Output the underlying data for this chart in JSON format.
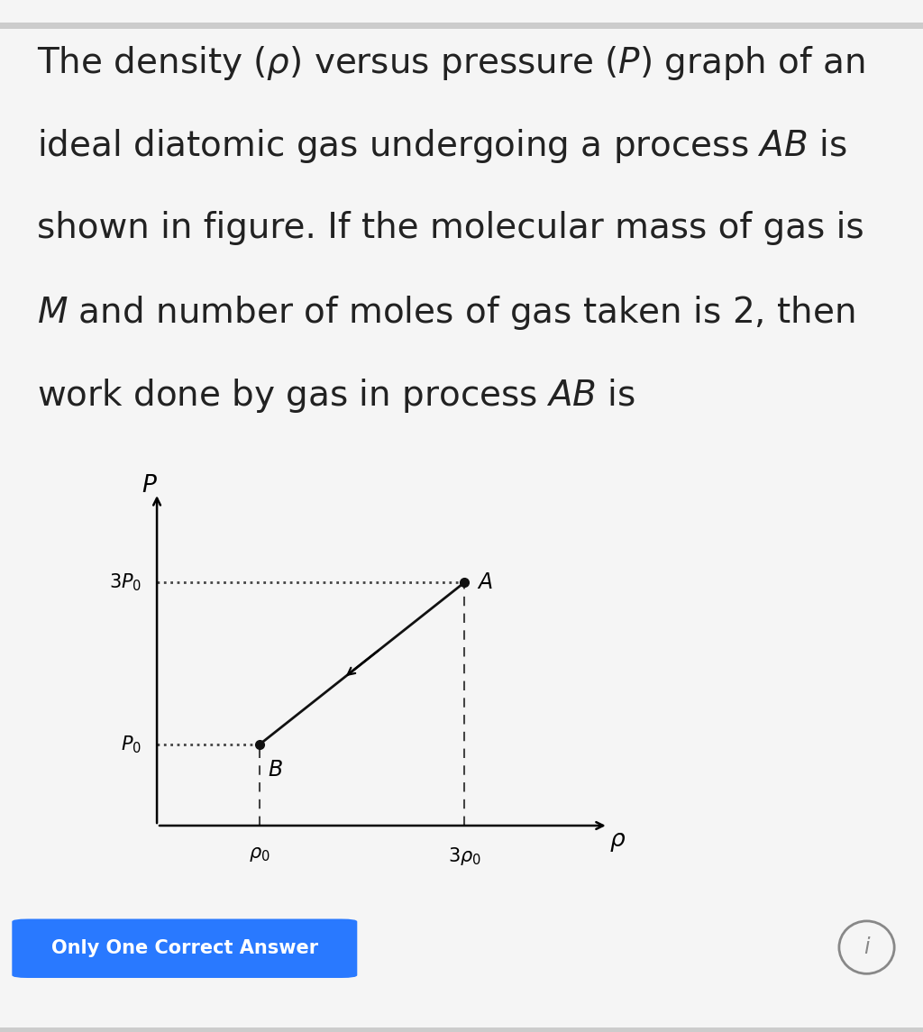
{
  "background_color": "#f5f5f5",
  "title_lines": [
    {
      "text": "The density (ρ) versus pressure (",
      "italic_parts": [],
      "style": "normal"
    },
    {
      "text": "P",
      "style": "italic"
    }
  ],
  "title_fontsize": 30,
  "title_color": "#222222",
  "point_B": [
    1,
    1
  ],
  "point_A": [
    3,
    3
  ],
  "line_color": "#111111",
  "dot_color": "#111111",
  "dashed_color": "#444444",
  "axis_label_P": "P",
  "axis_label_rho": "ρ",
  "label_3P0": "3P",
  "label_3P0_sub": "0",
  "label_P0": "P",
  "label_P0_sub": "0",
  "label_rho0": "ρ",
  "label_rho0_sub": "0",
  "label_3rho0": "3ρ",
  "label_3rho0_sub": "0",
  "label_A": "A",
  "label_B": "B",
  "button_text": "Only One Correct Answer",
  "button_color": "#2979ff",
  "button_text_color": "#ffffff",
  "info_circle_color": "#888888",
  "top_bar_color": "#cccccc",
  "bottom_bar_color": "#cccccc"
}
